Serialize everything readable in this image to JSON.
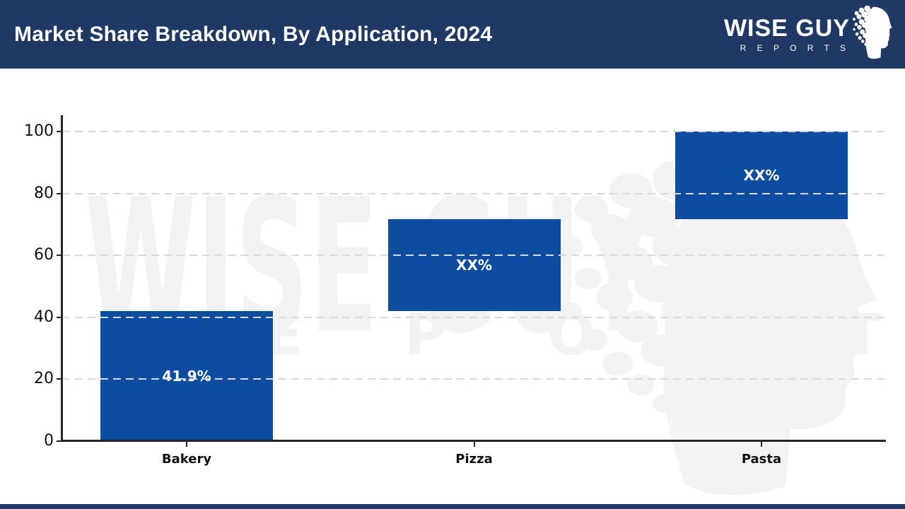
{
  "header": {
    "title": "Market Share Breakdown, By Application, 2024"
  },
  "logo": {
    "line1": "WISE GUY",
    "line2": "R E P O R T S"
  },
  "watermark": {
    "line1": "WISE GUY",
    "line2": "R E P O R T S"
  },
  "colors": {
    "header_bg": "#1f3864",
    "footer_bg": "#1f3864",
    "bar": "#0c4da2",
    "grid": "#d9d9d9",
    "axis": "#262626",
    "watermark": "#f3f3f4"
  },
  "chart_data": {
    "type": "bar",
    "subtype": "waterfall-stacked-percentage",
    "title": "Market Share Breakdown, By Application, 2024",
    "categories": [
      "Bakery",
      "Pizza",
      "Pasta"
    ],
    "segments": [
      {
        "category": "Bakery",
        "start": 0,
        "end": 41.9,
        "value": 41.9,
        "label": "41.9%"
      },
      {
        "category": "Pizza",
        "start": 41.9,
        "end": 71.6,
        "value": 29.7,
        "label": "XX%"
      },
      {
        "category": "Pasta",
        "start": 71.6,
        "end": 100,
        "value": 28.4,
        "label": "XX%"
      }
    ],
    "bar_color": "#0c4da2",
    "label_color": "#ffffff",
    "xlabel": "",
    "ylabel": "",
    "ylim": [
      0,
      100
    ],
    "yticks": [
      0,
      20,
      40,
      60,
      80,
      100
    ],
    "grid": "horizontal-dashed",
    "legend": "none"
  }
}
